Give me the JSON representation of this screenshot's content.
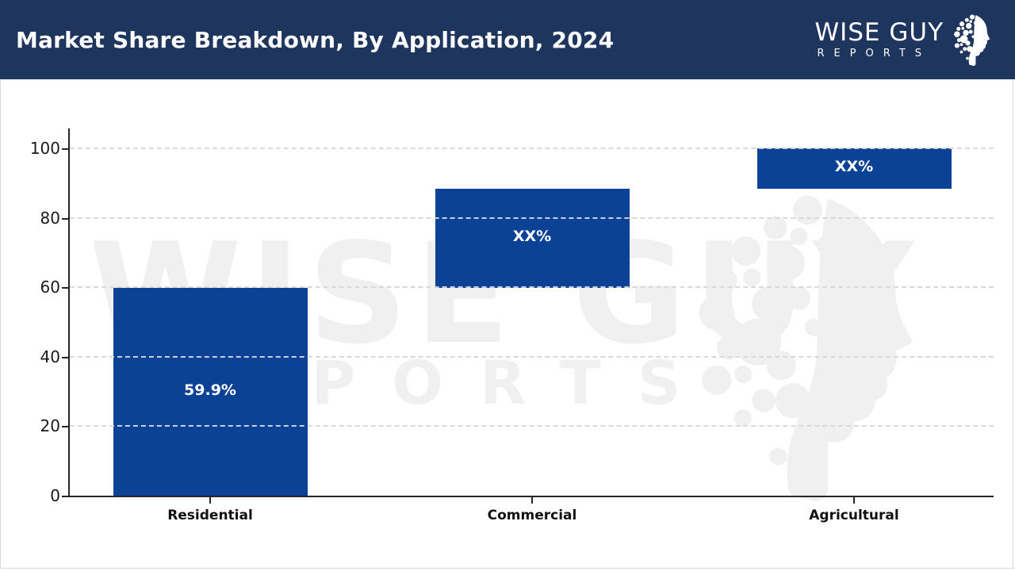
{
  "header": {
    "title": "Market Share Breakdown, By Application, 2024",
    "logo": {
      "line1": "WISE GUY",
      "line2": "REPORTS"
    }
  },
  "watermark": {
    "line1": "WISE GUY",
    "line2": "REPORTS"
  },
  "colors": {
    "header_bg": "#1e355e",
    "bar": "#0b4296",
    "grid": "#d7d7d7",
    "axis": "#262626",
    "watermark": "#f0f0f1"
  },
  "chart_data": {
    "type": "bar",
    "subtype": "waterfall",
    "title": "Market Share Breakdown, By Application, 2024",
    "categories": [
      "Residential",
      "Commercial",
      "Agricultural"
    ],
    "segments": [
      {
        "category": "Residential",
        "start": 0,
        "end": 59.9,
        "label": "59.9%"
      },
      {
        "category": "Commercial",
        "start": 59.9,
        "end": 88.4,
        "label": "XX%"
      },
      {
        "category": "Agricultural",
        "start": 88.4,
        "end": 100,
        "label": "XX%"
      }
    ],
    "xlabel": "",
    "ylabel": "",
    "ylim": [
      0,
      100
    ],
    "yticks": [
      0,
      20,
      40,
      60,
      80,
      100
    ],
    "grid": "horizontal-dashed",
    "legend": "none",
    "bar_color": "#0b4296",
    "bar_label_color": "#ffffff"
  }
}
